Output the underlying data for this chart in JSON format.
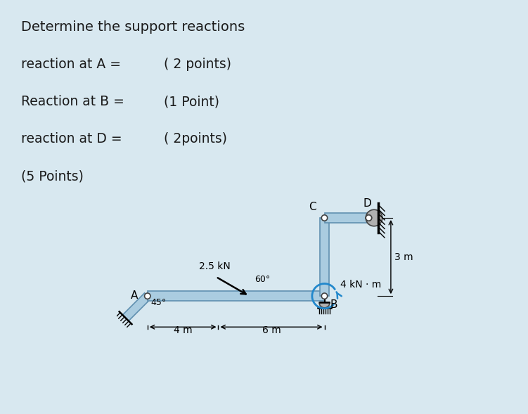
{
  "bg_top": "#d8e8f0",
  "bg_bottom": "#e2ecf4",
  "text_color": "#1a1a1a",
  "title": "Determine the support reactions",
  "line1": "reaction at A =",
  "line1b": "( 2 points)",
  "line2": "Reaction at B =",
  "line2b": "(1 Point)",
  "line3": "reaction at D =",
  "line3b": "( 2points)",
  "line4": "(5 Points)",
  "beam_color": "#aacce0",
  "beam_edge": "#6090b0",
  "support_gray": "#b0b0b0",
  "moment_color": "#2288cc",
  "dim_color": "#000000",
  "label_A": "A",
  "label_B": "B",
  "label_C": "C",
  "label_D": "D",
  "force_label": "2.5 kN",
  "angle_label": "60°",
  "moment_label": "4 kN · m",
  "angle_A_label": "45°",
  "dim1": "— 4 m —",
  "dim2": "———— 6 m ————",
  "dim3": "3 m"
}
